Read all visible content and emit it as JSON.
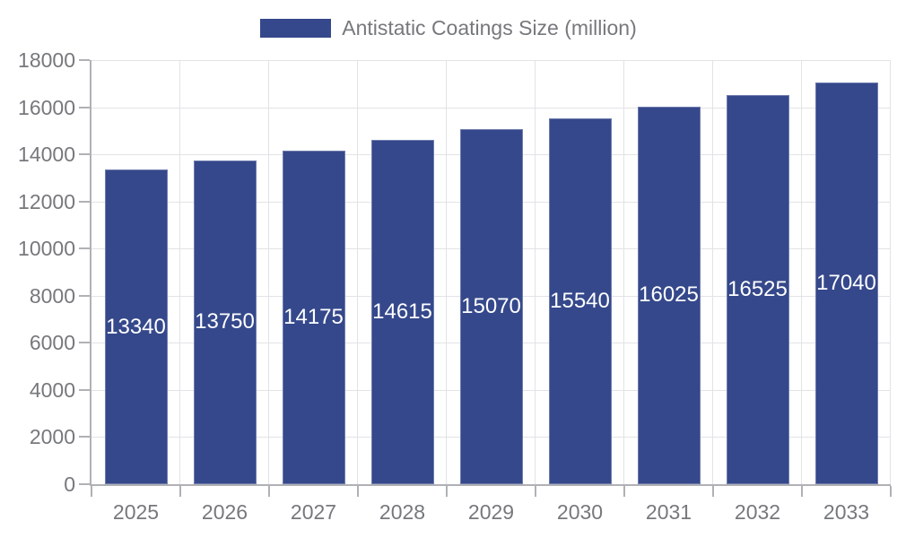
{
  "legend": {
    "label": "Antistatic Coatings Size (million)",
    "swatch_color": "#35488b"
  },
  "chart_data": {
    "type": "bar",
    "title": "Antistatic Coatings Size (million)",
    "categories": [
      "2025",
      "2026",
      "2027",
      "2028",
      "2029",
      "2030",
      "2031",
      "2032",
      "2033"
    ],
    "values": [
      13340,
      13750,
      14175,
      14615,
      15070,
      15540,
      16025,
      16525,
      17040
    ],
    "xlabel": "",
    "ylabel": "",
    "ylim": [
      0,
      18000
    ],
    "ytick_step": 2000,
    "ytick_labels": [
      "0",
      "2000",
      "4000",
      "6000",
      "8000",
      "10000",
      "12000",
      "14000",
      "16000",
      "18000"
    ],
    "grid": true,
    "legend_position": "top-center",
    "bar_color": "#35488b",
    "bar_border_color": "#6f7dad",
    "value_label_color": "#ffffff",
    "axis_text_color": "#76787c",
    "grid_color": "#e3e3e7",
    "axis_line_color": "#b0b1b5",
    "background_color": "#ffffff"
  }
}
